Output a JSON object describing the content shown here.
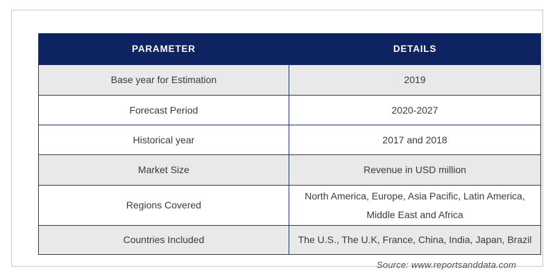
{
  "table": {
    "headers": [
      "PARAMETER",
      "DETAILS"
    ],
    "rows": [
      {
        "parameter": "Base year for Estimation",
        "details": "2019"
      },
      {
        "parameter": "Forecast Period",
        "details": "2020-2027"
      },
      {
        "parameter": "Historical year",
        "details": "2017 and 2018"
      },
      {
        "parameter": "Market Size",
        "details": "Revenue in USD million"
      },
      {
        "parameter": "Regions Covered",
        "details": "North America, Europe, Asia Pacific, Latin America, Middle East and Africa"
      },
      {
        "parameter": "Countries Included",
        "details": "The U.S., The  U.K, France, China, India, Japan, Brazil"
      }
    ]
  },
  "source": "Source: www.reportsanddata.com",
  "colors": {
    "header_navy": "#0e2361",
    "border_navy": "#223a6a",
    "shaded_row_gray": "#e9e9e9",
    "frame_gray": "#c9c9c9",
    "body_text": "#3a3a3a",
    "source_text": "#4f4f4f"
  }
}
